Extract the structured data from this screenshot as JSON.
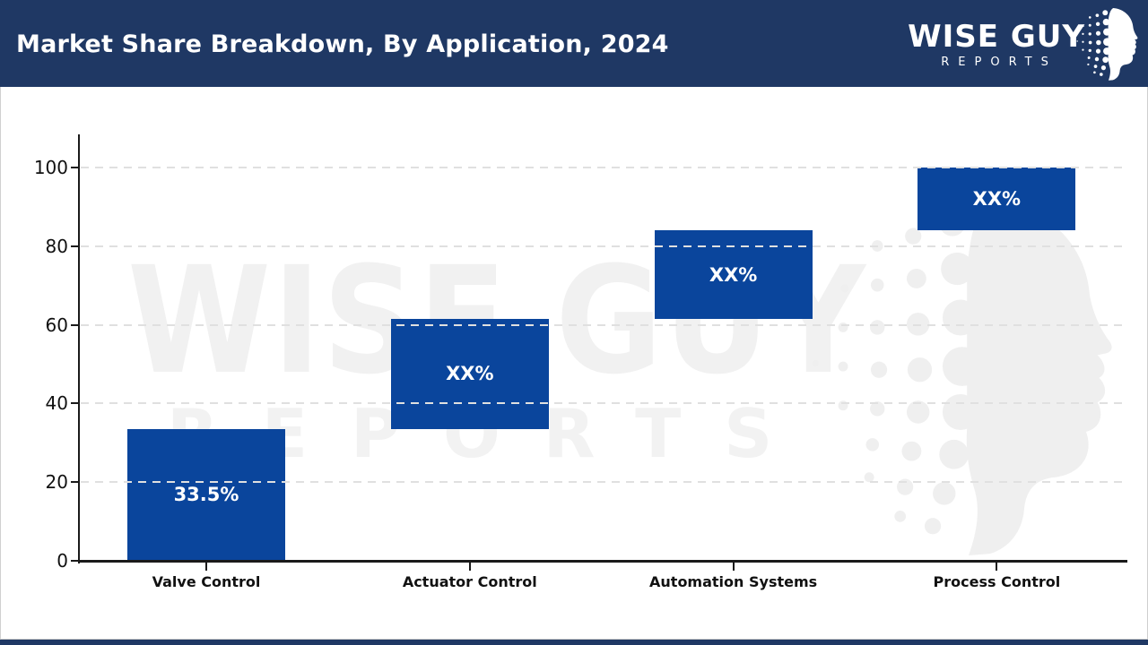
{
  "header": {
    "title": "Market Share Breakdown, By Application, 2024",
    "logo": {
      "name": "WISE GUY",
      "tagline": "REPORTS"
    }
  },
  "watermark": {
    "name": "WISE GUY",
    "tagline": "REPORTS"
  },
  "chart_data": {
    "type": "bar",
    "variant": "waterfall",
    "title": "Market Share Breakdown, By Application, 2024",
    "categories": [
      "Valve Control",
      "Actuator Control",
      "Automation Systems",
      "Process Control"
    ],
    "bars": [
      {
        "category": "Valve Control",
        "start": 0,
        "end": 33.5,
        "label": "33.5%"
      },
      {
        "category": "Actuator Control",
        "start": 33.5,
        "end": 61.5,
        "label": "XX%"
      },
      {
        "category": "Automation Systems",
        "start": 61.5,
        "end": 84,
        "label": "XX%"
      },
      {
        "category": "Process Control",
        "start": 84,
        "end": 100,
        "label": "XX%"
      }
    ],
    "yticks": [
      0,
      20,
      40,
      60,
      80,
      100
    ],
    "ylim": [
      0,
      100
    ],
    "xlabel": "",
    "ylabel": "",
    "grid": "horizontal-dashed",
    "legend": "none"
  },
  "colors": {
    "header_bg": "#1f3864",
    "footer_bg": "#1f3864",
    "bar": "#0a459c",
    "grid": "#e0e0e0",
    "axis": "#1a1a1a",
    "watermark": "#f0f0f0",
    "frame": "#c9c9c9"
  }
}
